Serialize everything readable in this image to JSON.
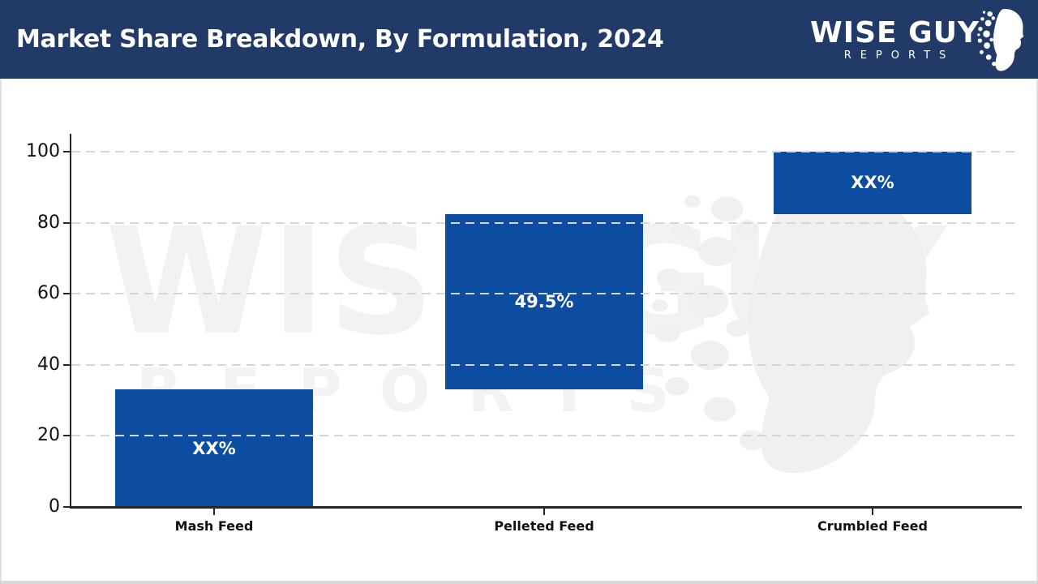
{
  "header": {
    "title": "Market Share Breakdown, By Formulation, 2024",
    "logo": {
      "wordmark": "WISE GUY",
      "subtext": "REPORTS"
    }
  },
  "watermark": {
    "wordmark": "WISE GUY",
    "subtext": "REPORTS"
  },
  "chart_data": {
    "type": "bar",
    "subtype": "floating-waterfall",
    "title": "Market Share Breakdown, By Formulation, 2024",
    "categories": [
      "Mash Feed",
      "Pelleted Feed",
      "Crumbled Feed"
    ],
    "bars": [
      {
        "category": "Mash Feed",
        "start": 0,
        "end": 33,
        "label": "XX%"
      },
      {
        "category": "Pelleted Feed",
        "start": 33,
        "end": 82.5,
        "label": "49.5%"
      },
      {
        "category": "Crumbled Feed",
        "start": 82.5,
        "end": 100,
        "label": "XX%"
      }
    ],
    "yticks": [
      0,
      20,
      40,
      60,
      80,
      100
    ],
    "ylim": [
      0,
      105
    ],
    "xlabel": "",
    "ylabel": "",
    "grid": "horizontal-dashed",
    "legend": "none",
    "bar_color": "#0C4DA2",
    "bar_label_color": "#ffffff"
  },
  "colors": {
    "header_bg": "#213A67",
    "bar": "#0C4DA2",
    "axis": "#262626",
    "grid": "#D6D6D6",
    "watermark": "#F2F2F2",
    "footer_strip": "#D9D9D9"
  }
}
